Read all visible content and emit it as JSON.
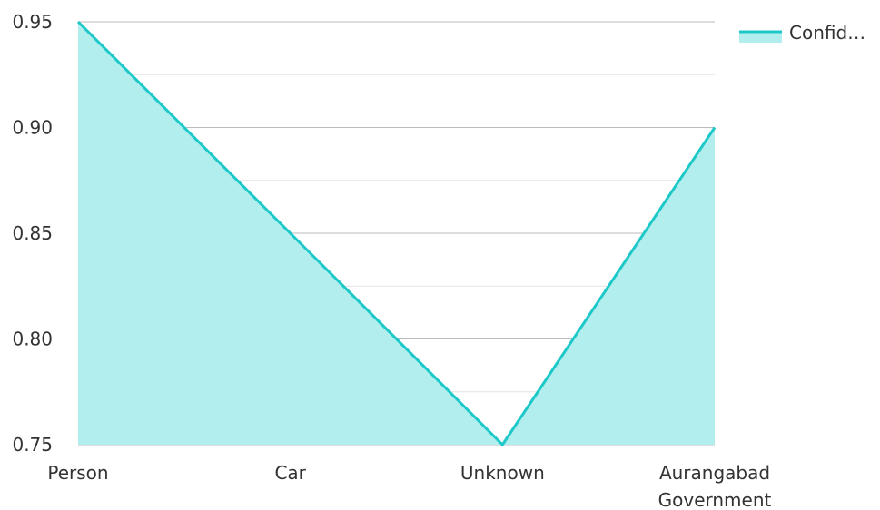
{
  "chart_data": {
    "type": "area",
    "categories": [
      [
        "Person"
      ],
      [
        "Car"
      ],
      [
        "Unknown"
      ],
      [
        "Aurangabad",
        "Government"
      ]
    ],
    "series": [
      {
        "name": "Confid…",
        "values": [
          0.95,
          0.85,
          0.75,
          0.9
        ]
      }
    ],
    "ylim": [
      0.75,
      0.95
    ],
    "yticks": [
      "0.95",
      "0.90",
      "0.85",
      "0.80",
      "0.75"
    ],
    "ytick_values": [
      0.95,
      0.9,
      0.85,
      0.8,
      0.75
    ],
    "grid": true,
    "legend": "top-right",
    "colors": {
      "line": "#1ec8c8",
      "fill": "#b2eeee",
      "grid_major": "#bbbbbb",
      "grid_minor": "#e4e4e4"
    }
  }
}
